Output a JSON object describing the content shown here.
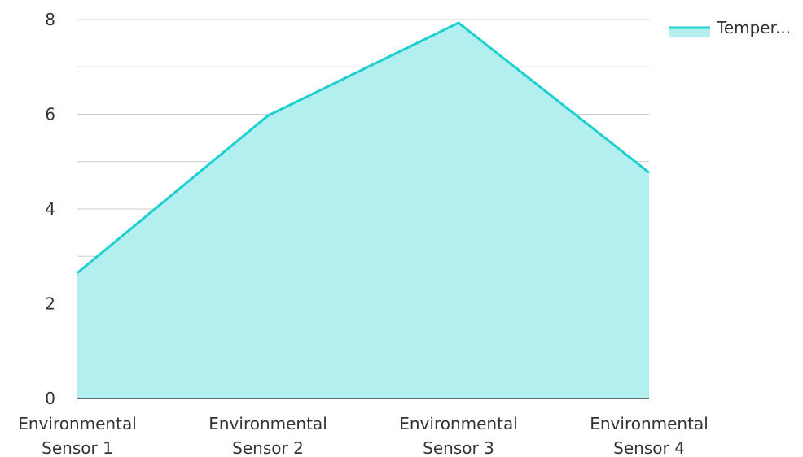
{
  "chart_data": {
    "type": "area",
    "title": "",
    "xlabel": "",
    "ylabel": "",
    "categories": [
      [
        "Environmental",
        "Sensor 1"
      ],
      [
        "Environmental",
        "Sensor 2"
      ],
      [
        "Environmental",
        "Sensor 3"
      ],
      [
        "Environmental",
        "Sensor 4"
      ]
    ],
    "series": [
      {
        "name": "Temper...",
        "values": [
          2.65,
          5.97,
          7.93,
          4.77
        ],
        "line_color": "#1ccfd0",
        "fill_color": "#b2efee"
      }
    ],
    "ylim": [
      0,
      8
    ],
    "y_ticks": [
      "0",
      "2",
      "4",
      "6",
      "8"
    ],
    "grid": true,
    "legend": "top-right",
    "gridline_color": "#cccccc",
    "baseline_color": "#333333"
  }
}
